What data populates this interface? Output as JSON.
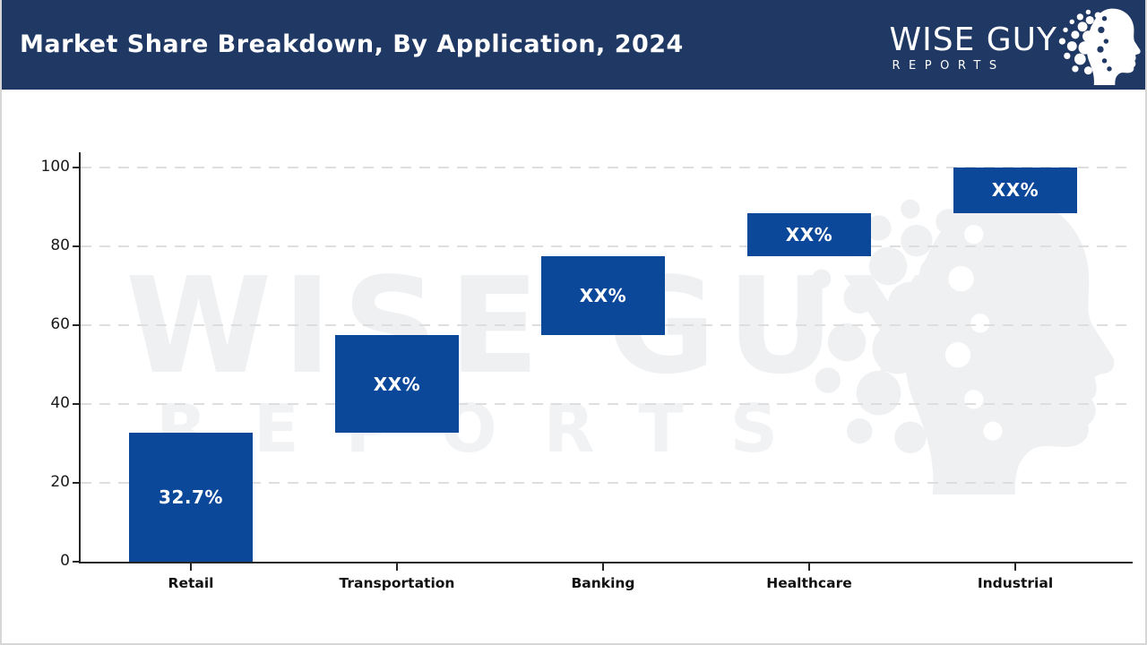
{
  "header": {
    "title": "Market Share Breakdown, By Application, 2024",
    "logo": {
      "wordmark": "WISE GUY",
      "subtext": "REPORTS"
    }
  },
  "watermark": {
    "wordmark": "WISE GUY",
    "subtext": "REPORTS"
  },
  "colors": {
    "header_bg": "#203864",
    "bar": "#0C4899",
    "axis": "#262626",
    "grid": "#dedede",
    "watermark": "#eff0f2"
  },
  "chart_data": {
    "type": "bar",
    "subtype": "waterfall",
    "title": "Market Share Breakdown, By Application, 2024",
    "categories": [
      "Retail",
      "Transportation",
      "Banking",
      "Healthcare",
      "Industrial"
    ],
    "segments": [
      {
        "category": "Retail",
        "start": 0,
        "end": 32.7,
        "label": "32.7%"
      },
      {
        "category": "Transportation",
        "start": 32.7,
        "end": 57.5,
        "label": "XX%"
      },
      {
        "category": "Banking",
        "start": 57.5,
        "end": 77.5,
        "label": "XX%"
      },
      {
        "category": "Healthcare",
        "start": 77.5,
        "end": 88.5,
        "label": "XX%"
      },
      {
        "category": "Industrial",
        "start": 88.5,
        "end": 100,
        "label": "XX%"
      }
    ],
    "y_ticks": [
      0,
      20,
      40,
      60,
      80,
      100
    ],
    "ylim": [
      0,
      104
    ],
    "xlabel": "",
    "ylabel": "",
    "grid": "horizontal-dashed",
    "legend": "none"
  }
}
